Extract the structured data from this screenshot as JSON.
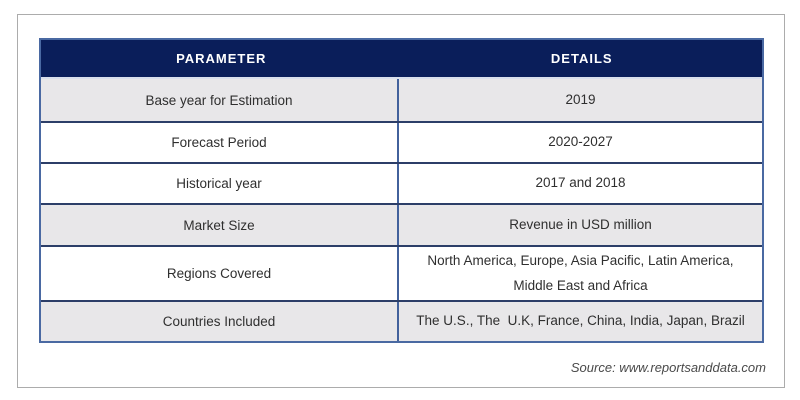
{
  "table": {
    "columns": [
      "PARAMETER",
      "DETAILS"
    ],
    "rows": [
      {
        "parameter": "Base year for Estimation",
        "details": "2019",
        "shaded": true
      },
      {
        "parameter": "Forecast Period",
        "details": "2020-2027",
        "shaded": false
      },
      {
        "parameter": "Historical year",
        "details": "2017 and 2018",
        "shaded": false
      },
      {
        "parameter": "Market Size",
        "details": "Revenue in USD million",
        "shaded": true
      },
      {
        "parameter": "Regions Covered",
        "details": "North America, Europe, Asia Pacific, Latin America,\nMiddle East and Africa",
        "shaded": false
      },
      {
        "parameter": "Countries Included",
        "details": "The U.S., The  U.K, France, China, India, Japan, Brazil",
        "shaded": true
      }
    ]
  },
  "source": {
    "label": "Source: www.reportsanddata.com"
  },
  "colors": {
    "header_bg": "#0a1e5a",
    "header_text": "#ffffff",
    "shaded_row_bg": "#e8e7e9",
    "row_bg": "#ffffff",
    "outer_border": "#4a69a2",
    "row_separator": "#2c3e68",
    "header_separator": "#d9dfec",
    "body_text": "#2f2f2f",
    "source_text": "#4a4a4a"
  }
}
